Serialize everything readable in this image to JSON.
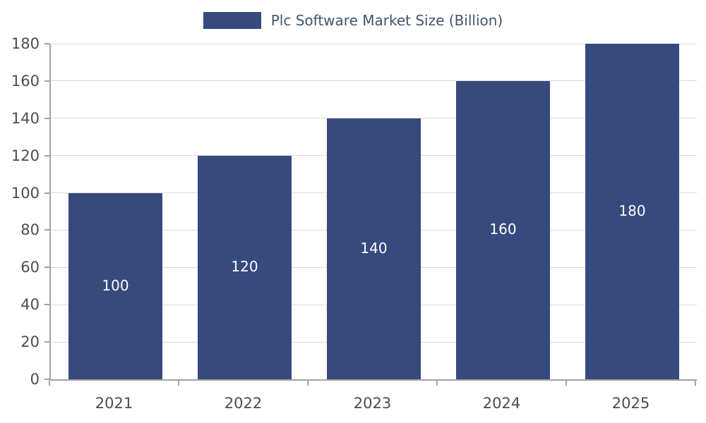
{
  "legend": {
    "label": "Plc Software Market Size (Billion)"
  },
  "colors": {
    "bar": "#374a7e",
    "bar_label": "#ffffff",
    "grid": "#d9d9d9",
    "axis": "#a3a3a3",
    "tick_text": "#4d4d4d",
    "title_text": "#44546a",
    "background": "#ffffff"
  },
  "chart_data": {
    "type": "bar",
    "title": "Plc Software Market Size (Billion)",
    "categories": [
      "2021",
      "2022",
      "2023",
      "2024",
      "2025"
    ],
    "values": [
      100,
      120,
      140,
      160,
      180
    ],
    "xlabel": "",
    "ylabel": "",
    "ylim": [
      0,
      180
    ],
    "ytick_step": 20,
    "yticks": [
      0,
      20,
      40,
      60,
      80,
      100,
      120,
      140,
      160,
      180
    ],
    "grid": true,
    "legend_position": "top-center",
    "data_labels": "inside-center"
  }
}
